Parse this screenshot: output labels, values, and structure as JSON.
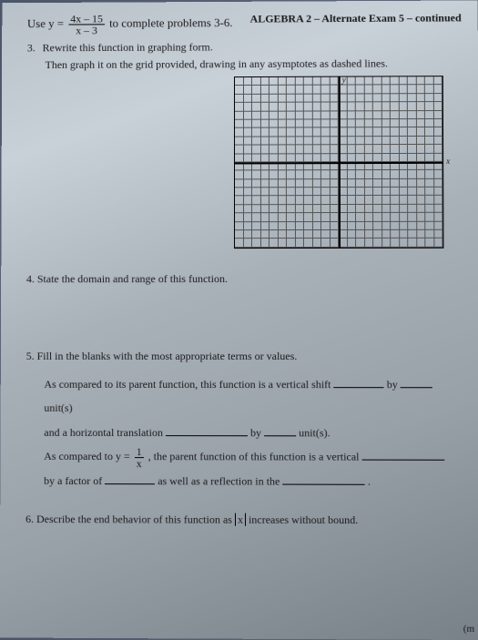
{
  "header": {
    "title": "ALGEBRA 2 – Alternate Exam 5 – continued",
    "use_prefix": "Use  y =",
    "frac_num": "4x – 15",
    "frac_den": "x – 3",
    "use_suffix": "to complete problems 3-6."
  },
  "q3": {
    "num": "3.",
    "line1": "Rewrite this function in graphing form.",
    "line2": "Then graph it on the grid provided, drawing in any asymptotes as dashed lines."
  },
  "grid": {
    "ylabel": "y",
    "xlabel": "x"
  },
  "q4": {
    "num": "4.",
    "text": "State the domain and range of this function."
  },
  "q5": {
    "num": "5.",
    "text": "Fill in the blanks with the most appropriate terms or values.",
    "p1a": "As compared to its parent function, this function is a vertical shift",
    "p1b": "by",
    "p1c": "unit(s)",
    "p2a": "and a horizontal translation",
    "p2b": "by",
    "p2c": "unit(s).",
    "p3a": "As compared to y =",
    "p3_num": "1",
    "p3_den": "x",
    "p3b": ", the parent function of this function is a vertical",
    "p4a": "by a factor of",
    "p4b": "as well as a reflection in the",
    "p4c": "."
  },
  "q6": {
    "num": "6.",
    "text_a": "Describe the end behavior of this function as ",
    "abs_x": "x",
    "text_b": " increases without bound."
  },
  "footer": "(m"
}
